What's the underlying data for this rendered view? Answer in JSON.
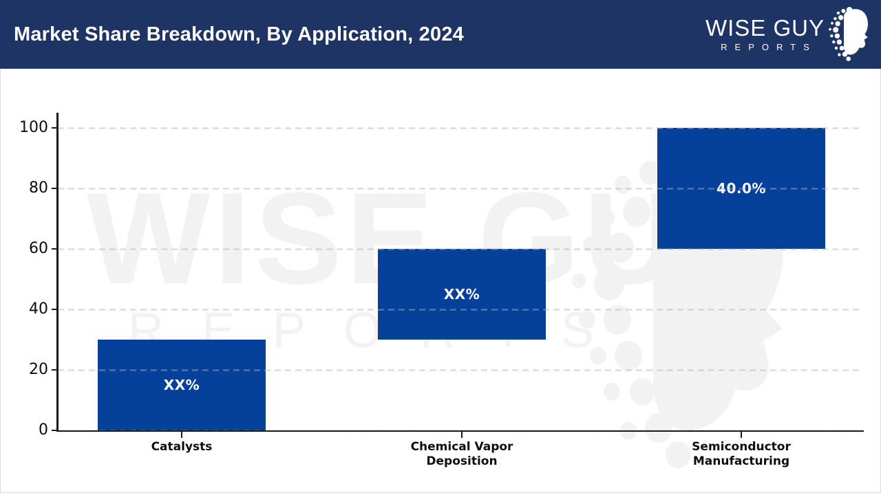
{
  "header": {
    "title": "Market Share Breakdown, By Application, 2024",
    "logo": {
      "brand": "WISE GUY",
      "tagline": "REPORTS"
    }
  },
  "watermark": {
    "brand": "WISE GUY",
    "tagline": "REPORTS"
  },
  "colors": {
    "header_bg": "#1e3464",
    "bar": "#05409a",
    "bar_label": "#ffffff",
    "axis": "#1a1a1a",
    "grid": "#b2b2b2",
    "watermark": "#f2f2f2",
    "frame_border": "#d9d9d9"
  },
  "chart_data": {
    "type": "bar",
    "subtype": "waterfall",
    "title": "Market Share Breakdown, By Application, 2024",
    "categories": [
      "Catalysts",
      "Chemical Vapor Deposition",
      "Semiconductor Manufacturing"
    ],
    "tick_label_lines": [
      [
        "Catalysts"
      ],
      [
        "Chemical Vapor",
        "Deposition"
      ],
      [
        "Semiconductor",
        "Manufacturing"
      ]
    ],
    "segments": [
      {
        "category": "Catalysts",
        "start": 0,
        "end": 30,
        "value": 30,
        "label": "XX%"
      },
      {
        "category": "Chemical Vapor Deposition",
        "start": 30,
        "end": 60,
        "value": 30,
        "label": "XX%"
      },
      {
        "category": "Semiconductor Manufacturing",
        "start": 60,
        "end": 100,
        "value": 40,
        "label": "40.0%"
      }
    ],
    "xlabel": "",
    "ylabel": "",
    "ylim": [
      0,
      105
    ],
    "yticks": [
      0,
      20,
      40,
      60,
      80,
      100
    ],
    "grid": {
      "axis": "y",
      "style": "dashed",
      "on": true
    },
    "legend": "none"
  }
}
